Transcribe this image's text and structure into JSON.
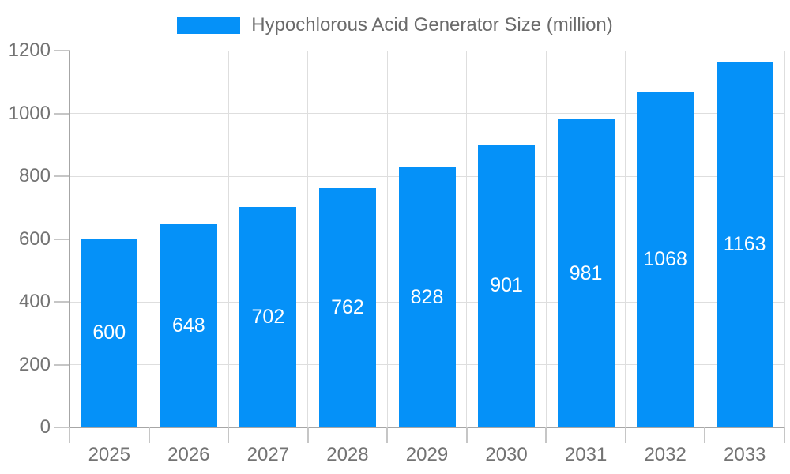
{
  "chart_data": {
    "type": "bar",
    "title": "Hypochlorous Acid Generator Size (million)",
    "series_name": "Hypochlorous Acid Generator Size (million)",
    "categories": [
      "2025",
      "2026",
      "2027",
      "2028",
      "2029",
      "2030",
      "2031",
      "2032",
      "2033"
    ],
    "values": [
      600,
      648,
      702,
      762,
      828,
      901,
      981,
      1068,
      1163
    ],
    "xlabel": "",
    "ylabel": "",
    "ylim": [
      0,
      1200
    ],
    "yticks": [
      0,
      200,
      400,
      600,
      800,
      1000,
      1200
    ],
    "grid": true,
    "legend_position": "top",
    "bar_labels_inside": true
  },
  "colors": {
    "bar": "#0591f8",
    "bar_label": "#ffffff",
    "gridline": "#dedede",
    "tick": "#c6c6c6",
    "axis_line": "#a6a6a6",
    "axis_label": "#737373",
    "legend_label": "#6b6b6b",
    "background": "#ffffff"
  }
}
